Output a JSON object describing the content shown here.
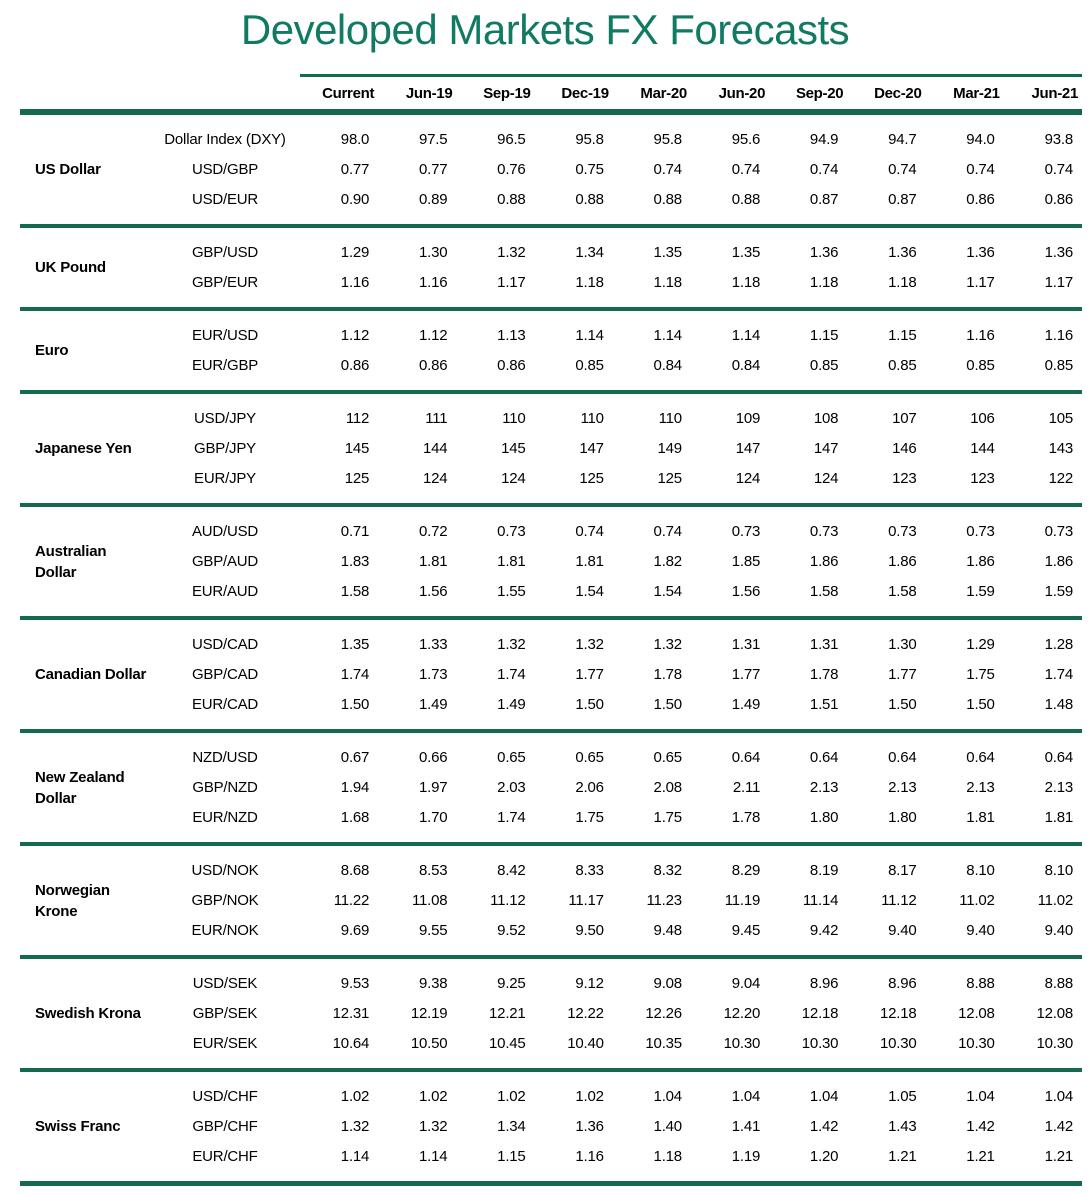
{
  "title": "Developed Markets FX Forecasts",
  "colors": {
    "title_green": "#107a62",
    "rule_green": "#156a4d",
    "text": "#000000"
  },
  "table": {
    "column_headers": [
      "Current",
      "Jun-19",
      "Sep-19",
      "Dec-19",
      "Mar-20",
      "Jun-20",
      "Sep-20",
      "Dec-20",
      "Mar-21",
      "Jun-21"
    ],
    "groups": [
      {
        "label": "US Dollar",
        "rows": [
          {
            "pair": "Dollar Index (DXY)",
            "values": [
              "98.0",
              "97.5",
              "96.5",
              "95.8",
              "95.8",
              "95.6",
              "94.9",
              "94.7",
              "94.0",
              "93.8"
            ]
          },
          {
            "pair": "USD/GBP",
            "values": [
              "0.77",
              "0.77",
              "0.76",
              "0.75",
              "0.74",
              "0.74",
              "0.74",
              "0.74",
              "0.74",
              "0.74"
            ]
          },
          {
            "pair": "USD/EUR",
            "values": [
              "0.90",
              "0.89",
              "0.88",
              "0.88",
              "0.88",
              "0.88",
              "0.87",
              "0.87",
              "0.86",
              "0.86"
            ]
          }
        ]
      },
      {
        "label": "UK Pound",
        "rows": [
          {
            "pair": "GBP/USD",
            "values": [
              "1.29",
              "1.30",
              "1.32",
              "1.34",
              "1.35",
              "1.35",
              "1.36",
              "1.36",
              "1.36",
              "1.36"
            ]
          },
          {
            "pair": "GBP/EUR",
            "values": [
              "1.16",
              "1.16",
              "1.17",
              "1.18",
              "1.18",
              "1.18",
              "1.18",
              "1.18",
              "1.17",
              "1.17"
            ]
          }
        ]
      },
      {
        "label": "Euro",
        "rows": [
          {
            "pair": "EUR/USD",
            "values": [
              "1.12",
              "1.12",
              "1.13",
              "1.14",
              "1.14",
              "1.14",
              "1.15",
              "1.15",
              "1.16",
              "1.16"
            ]
          },
          {
            "pair": "EUR/GBP",
            "values": [
              "0.86",
              "0.86",
              "0.86",
              "0.85",
              "0.84",
              "0.84",
              "0.85",
              "0.85",
              "0.85",
              "0.85"
            ]
          }
        ]
      },
      {
        "label": "Japanese Yen",
        "rows": [
          {
            "pair": "USD/JPY",
            "values": [
              "112",
              "111",
              "110",
              "110",
              "110",
              "109",
              "108",
              "107",
              "106",
              "105"
            ]
          },
          {
            "pair": "GBP/JPY",
            "values": [
              "145",
              "144",
              "145",
              "147",
              "149",
              "147",
              "147",
              "146",
              "144",
              "143"
            ]
          },
          {
            "pair": "EUR/JPY",
            "values": [
              "125",
              "124",
              "124",
              "125",
              "125",
              "124",
              "124",
              "123",
              "123",
              "122"
            ]
          }
        ]
      },
      {
        "label": "Australian\nDollar",
        "rows": [
          {
            "pair": "AUD/USD",
            "values": [
              "0.71",
              "0.72",
              "0.73",
              "0.74",
              "0.74",
              "0.73",
              "0.73",
              "0.73",
              "0.73",
              "0.73"
            ]
          },
          {
            "pair": "GBP/AUD",
            "values": [
              "1.83",
              "1.81",
              "1.81",
              "1.81",
              "1.82",
              "1.85",
              "1.86",
              "1.86",
              "1.86",
              "1.86"
            ]
          },
          {
            "pair": "EUR/AUD",
            "values": [
              "1.58",
              "1.56",
              "1.55",
              "1.54",
              "1.54",
              "1.56",
              "1.58",
              "1.58",
              "1.59",
              "1.59"
            ]
          }
        ]
      },
      {
        "label": "Canadian Dollar",
        "rows": [
          {
            "pair": "USD/CAD",
            "values": [
              "1.35",
              "1.33",
              "1.32",
              "1.32",
              "1.32",
              "1.31",
              "1.31",
              "1.30",
              "1.29",
              "1.28"
            ]
          },
          {
            "pair": "GBP/CAD",
            "values": [
              "1.74",
              "1.73",
              "1.74",
              "1.77",
              "1.78",
              "1.77",
              "1.78",
              "1.77",
              "1.75",
              "1.74"
            ]
          },
          {
            "pair": "EUR/CAD",
            "values": [
              "1.50",
              "1.49",
              "1.49",
              "1.50",
              "1.50",
              "1.49",
              "1.51",
              "1.50",
              "1.50",
              "1.48"
            ]
          }
        ]
      },
      {
        "label": "New Zealand\nDollar",
        "rows": [
          {
            "pair": "NZD/USD",
            "values": [
              "0.67",
              "0.66",
              "0.65",
              "0.65",
              "0.65",
              "0.64",
              "0.64",
              "0.64",
              "0.64",
              "0.64"
            ]
          },
          {
            "pair": "GBP/NZD",
            "values": [
              "1.94",
              "1.97",
              "2.03",
              "2.06",
              "2.08",
              "2.11",
              "2.13",
              "2.13",
              "2.13",
              "2.13"
            ]
          },
          {
            "pair": "EUR/NZD",
            "values": [
              "1.68",
              "1.70",
              "1.74",
              "1.75",
              "1.75",
              "1.78",
              "1.80",
              "1.80",
              "1.81",
              "1.81"
            ]
          }
        ]
      },
      {
        "label": "Norwegian\nKrone",
        "rows": [
          {
            "pair": "USD/NOK",
            "values": [
              "8.68",
              "8.53",
              "8.42",
              "8.33",
              "8.32",
              "8.29",
              "8.19",
              "8.17",
              "8.10",
              "8.10"
            ]
          },
          {
            "pair": "GBP/NOK",
            "values": [
              "11.22",
              "11.08",
              "11.12",
              "11.17",
              "11.23",
              "11.19",
              "11.14",
              "11.12",
              "11.02",
              "11.02"
            ]
          },
          {
            "pair": "EUR/NOK",
            "values": [
              "9.69",
              "9.55",
              "9.52",
              "9.50",
              "9.48",
              "9.45",
              "9.42",
              "9.40",
              "9.40",
              "9.40"
            ]
          }
        ]
      },
      {
        "label": "Swedish Krona",
        "rows": [
          {
            "pair": "USD/SEK",
            "values": [
              "9.53",
              "9.38",
              "9.25",
              "9.12",
              "9.08",
              "9.04",
              "8.96",
              "8.96",
              "8.88",
              "8.88"
            ]
          },
          {
            "pair": "GBP/SEK",
            "values": [
              "12.31",
              "12.19",
              "12.21",
              "12.22",
              "12.26",
              "12.20",
              "12.18",
              "12.18",
              "12.08",
              "12.08"
            ]
          },
          {
            "pair": "EUR/SEK",
            "values": [
              "10.64",
              "10.50",
              "10.45",
              "10.40",
              "10.35",
              "10.30",
              "10.30",
              "10.30",
              "10.30",
              "10.30"
            ]
          }
        ]
      },
      {
        "label": "Swiss Franc",
        "rows": [
          {
            "pair": "USD/CHF",
            "values": [
              "1.02",
              "1.02",
              "1.02",
              "1.02",
              "1.04",
              "1.04",
              "1.04",
              "1.05",
              "1.04",
              "1.04"
            ]
          },
          {
            "pair": "GBP/CHF",
            "values": [
              "1.32",
              "1.32",
              "1.34",
              "1.36",
              "1.40",
              "1.41",
              "1.42",
              "1.43",
              "1.42",
              "1.42"
            ]
          },
          {
            "pair": "EUR/CHF",
            "values": [
              "1.14",
              "1.14",
              "1.15",
              "1.16",
              "1.18",
              "1.19",
              "1.20",
              "1.21",
              "1.21",
              "1.21"
            ]
          }
        ]
      }
    ]
  }
}
